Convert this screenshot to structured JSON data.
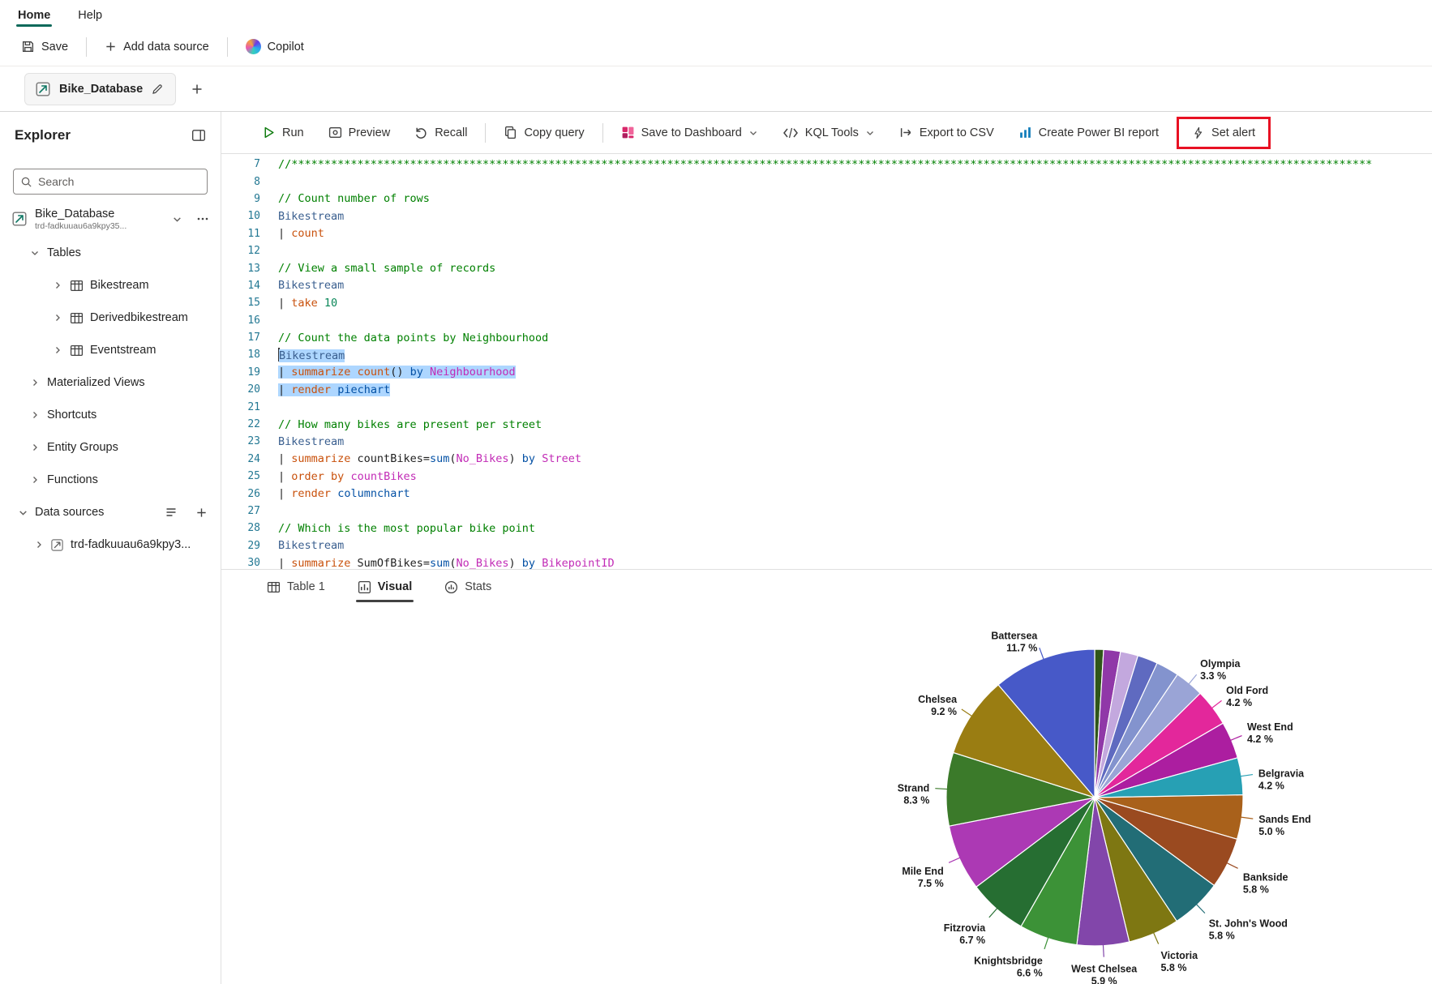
{
  "colors": {
    "accent_green": "#0C695A",
    "selection_blue": "#ADD6FF",
    "annotation_red": "#E81123"
  },
  "menu": {
    "tabs": [
      {
        "label": "Home",
        "active": true
      },
      {
        "label": "Help",
        "active": false
      }
    ]
  },
  "app_toolbar": {
    "save": "Save",
    "add_data_source": "Add data source",
    "copilot": "Copilot"
  },
  "db_tab": {
    "title": "Bike_Database"
  },
  "explorer": {
    "title": "Explorer",
    "search_placeholder": "Search",
    "root": {
      "name": "Bike_Database",
      "subtitle": "trd-fadkuuau6a9kpy35..."
    },
    "sections": [
      {
        "label": "Tables",
        "expanded": true,
        "children": [
          {
            "label": "Bikestream"
          },
          {
            "label": "Derivedbikestream"
          },
          {
            "label": "Eventstream"
          }
        ]
      },
      {
        "label": "Materialized Views",
        "expanded": false
      },
      {
        "label": "Shortcuts",
        "expanded": false
      },
      {
        "label": "Entity Groups",
        "expanded": false
      },
      {
        "label": "Functions",
        "expanded": false
      }
    ],
    "data_sources": {
      "label": "Data sources",
      "items": [
        {
          "label": "trd-fadkuuau6a9kpy3..."
        }
      ]
    }
  },
  "query_toolbar": {
    "buttons": [
      {
        "label": "Run",
        "icon": "play"
      },
      {
        "label": "Preview",
        "icon": "preview"
      },
      {
        "label": "Recall",
        "icon": "recall"
      },
      {
        "divider": true
      },
      {
        "label": "Copy query",
        "icon": "copy"
      },
      {
        "divider": true
      },
      {
        "label": "Save to Dashboard",
        "icon": "dashboard",
        "chevron": true
      },
      {
        "label": "KQL Tools",
        "icon": "code",
        "chevron": true
      },
      {
        "label": "Export to CSV",
        "icon": "export"
      },
      {
        "label": "Create Power BI report",
        "icon": "powerbi"
      },
      {
        "label": "Set alert",
        "icon": "alert",
        "highlighted": true
      }
    ]
  },
  "editor": {
    "lines": [
      {
        "n": 7,
        "seg": [
          [
            "cm",
            "//********************************************************************************************************************************************************************"
          ]
        ]
      },
      {
        "n": 8,
        "seg": []
      },
      {
        "n": 9,
        "seg": [
          [
            "cm",
            "// Count number of rows"
          ]
        ]
      },
      {
        "n": 10,
        "seg": [
          [
            "tbl",
            "Bikestream"
          ]
        ]
      },
      {
        "n": 11,
        "seg": [
          [
            "pl",
            "| "
          ],
          [
            "kw",
            "count"
          ]
        ]
      },
      {
        "n": 12,
        "seg": []
      },
      {
        "n": 13,
        "seg": [
          [
            "cm",
            "// View a small sample of records"
          ]
        ]
      },
      {
        "n": 14,
        "seg": [
          [
            "tbl",
            "Bikestream"
          ]
        ]
      },
      {
        "n": 15,
        "seg": [
          [
            "pl",
            "| "
          ],
          [
            "kw",
            "take"
          ],
          [
            "pl",
            " "
          ],
          [
            "num",
            "10"
          ]
        ]
      },
      {
        "n": 16,
        "seg": []
      },
      {
        "n": 17,
        "seg": [
          [
            "cm",
            "// Count the data points by Neighbourhood"
          ]
        ]
      },
      {
        "n": 18,
        "sel": true,
        "caret": true,
        "seg": [
          [
            "tbl",
            "Bikestream"
          ]
        ]
      },
      {
        "n": 19,
        "sel": true,
        "seg": [
          [
            "pl",
            "| "
          ],
          [
            "kw",
            "summarize"
          ],
          [
            "pl",
            " "
          ],
          [
            "kw",
            "count"
          ],
          [
            "pl",
            "() "
          ],
          [
            "kb",
            "by"
          ],
          [
            "pl",
            " "
          ],
          [
            "col",
            "Neighbourhood"
          ]
        ]
      },
      {
        "n": 20,
        "sel": true,
        "seg": [
          [
            "pl",
            "| "
          ],
          [
            "kw",
            "render"
          ],
          [
            "pl",
            " "
          ],
          [
            "fn",
            "piechart"
          ]
        ]
      },
      {
        "n": 21,
        "seg": []
      },
      {
        "n": 22,
        "seg": [
          [
            "cm",
            "// How many bikes are present per street"
          ]
        ]
      },
      {
        "n": 23,
        "seg": [
          [
            "tbl",
            "Bikestream"
          ]
        ]
      },
      {
        "n": 24,
        "seg": [
          [
            "pl",
            "| "
          ],
          [
            "kw",
            "summarize"
          ],
          [
            "pl",
            " countBikes="
          ],
          [
            "fn",
            "sum"
          ],
          [
            "pl",
            "("
          ],
          [
            "col",
            "No_Bikes"
          ],
          [
            "pl",
            ") "
          ],
          [
            "kb",
            "by"
          ],
          [
            "pl",
            " "
          ],
          [
            "col",
            "Street"
          ]
        ]
      },
      {
        "n": 25,
        "seg": [
          [
            "pl",
            "| "
          ],
          [
            "kw",
            "order by"
          ],
          [
            "pl",
            " "
          ],
          [
            "col",
            "countBikes"
          ]
        ]
      },
      {
        "n": 26,
        "seg": [
          [
            "pl",
            "| "
          ],
          [
            "kw",
            "render"
          ],
          [
            "pl",
            " "
          ],
          [
            "fn",
            "columnchart"
          ]
        ]
      },
      {
        "n": 27,
        "seg": []
      },
      {
        "n": 28,
        "seg": [
          [
            "cm",
            "// Which is the most popular bike point"
          ]
        ]
      },
      {
        "n": 29,
        "seg": [
          [
            "tbl",
            "Bikestream"
          ]
        ]
      },
      {
        "n": 30,
        "seg": [
          [
            "pl",
            "| "
          ],
          [
            "kw",
            "summarize"
          ],
          [
            "pl",
            " SumOfBikes="
          ],
          [
            "fn",
            "sum"
          ],
          [
            "pl",
            "("
          ],
          [
            "col",
            "No_Bikes"
          ],
          [
            "pl",
            ") "
          ],
          [
            "kb",
            "by"
          ],
          [
            "pl",
            " "
          ],
          [
            "col",
            "BikepointID"
          ]
        ]
      }
    ]
  },
  "results": {
    "tabs": [
      {
        "label": "Table 1",
        "icon": "table",
        "active": false
      },
      {
        "label": "Visual",
        "icon": "visual",
        "active": true
      },
      {
        "label": "Stats",
        "icon": "stats",
        "active": false
      }
    ]
  },
  "chart_data": {
    "type": "pie",
    "title": "",
    "legend": "none",
    "label_format": "name + percent",
    "slices": [
      {
        "label": "",
        "value": 1.0,
        "color": "#2F5618"
      },
      {
        "label": "",
        "value": 1.9,
        "color": "#9038A8"
      },
      {
        "label": "",
        "value": 2.0,
        "color": "#C3A8DE"
      },
      {
        "label": "",
        "value": 2.3,
        "color": "#5F6AC0"
      },
      {
        "label": "",
        "value": 2.6,
        "color": "#8393CE"
      },
      {
        "label": "Olympia",
        "value": 3.3,
        "color": "#9AA4D6"
      },
      {
        "label": "Old Ford",
        "value": 4.2,
        "color": "#E3279B"
      },
      {
        "label": "West End",
        "value": 4.2,
        "color": "#AC1EA0"
      },
      {
        "label": "Belgravia",
        "value": 4.2,
        "color": "#27A0B4"
      },
      {
        "label": "Sands End",
        "value": 5.0,
        "color": "#A9611B"
      },
      {
        "label": "Bankside",
        "value": 5.8,
        "color": "#9A4A20"
      },
      {
        "label": "St. John's Wood",
        "value": 5.8,
        "color": "#226D76"
      },
      {
        "label": "Victoria",
        "value": 5.8,
        "color": "#7E7712"
      },
      {
        "label": "West Chelsea",
        "value": 5.9,
        "color": "#8246AA"
      },
      {
        "label": "Knightsbridge",
        "value": 6.6,
        "color": "#3C9237"
      },
      {
        "label": "Fitzrovia",
        "value": 6.7,
        "color": "#266E32"
      },
      {
        "label": "Mile End",
        "value": 7.5,
        "color": "#AC39B4"
      },
      {
        "label": "Strand",
        "value": 8.3,
        "color": "#3B7A2A"
      },
      {
        "label": "Chelsea",
        "value": 9.2,
        "color": "#9A7D12"
      },
      {
        "label": "Battersea",
        "value": 11.7,
        "color": "#4759C8"
      }
    ]
  }
}
